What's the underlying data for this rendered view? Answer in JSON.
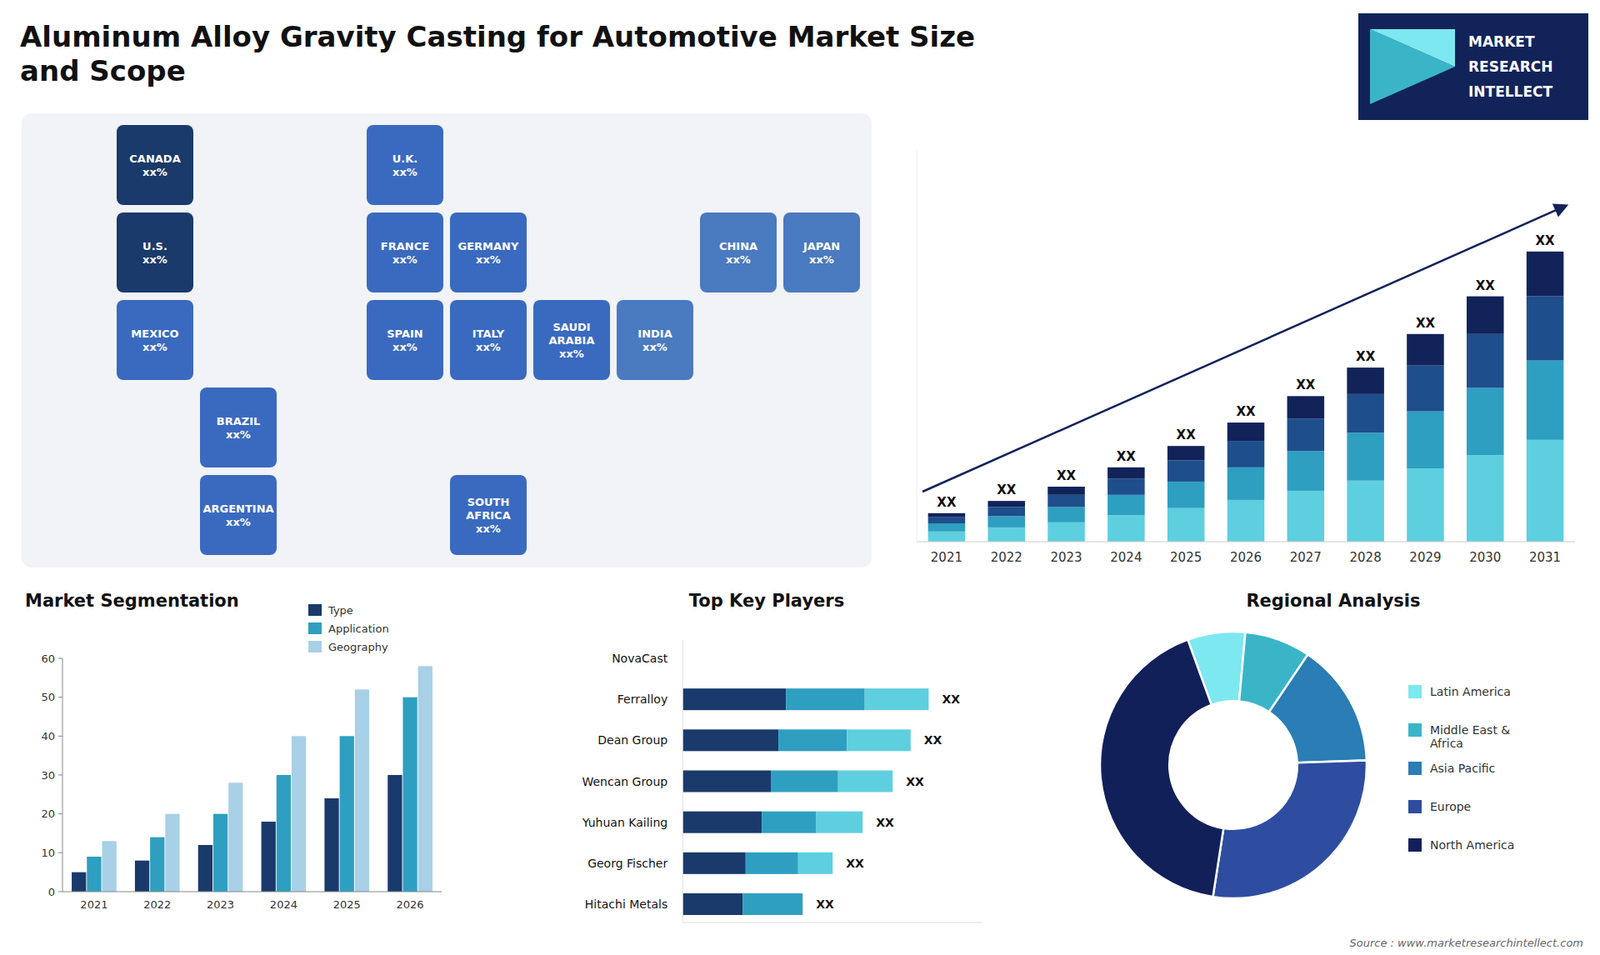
{
  "annotations": [
    "MARKET",
    "RESEARCH",
    "INTELLECT",
    "Source : www.marketresearchintellect.com"
  ],
  "chart_data": [
    {
      "type": "map",
      "categories": [
        "U.S.\nxx%",
        "CANADA\nxx%",
        "MEXICO\nxx%",
        "BRAZIL\nxx%",
        "ARGENTINA\nxx%",
        "U.K.\nxx%",
        "FRANCE\nxx%",
        "SPAIN\nxx%",
        "GERMANY\nxx%",
        "ITALY\nxx%",
        "SAUDI\nARABIA\nxx%",
        "SOUTH\nAFRICA\nxx%",
        "CHINA\nxx%",
        "INDIA\nxx%",
        "JAPAN\nxx%"
      ],
      "colors": [
        "#1a3a6b",
        "#1a3a6b",
        "#3a6abf",
        "#3a6abf",
        "#3a6abf",
        "#3a6abf",
        "#3a6abf",
        "#3a6abf",
        "#3a6abf",
        "#3a6abf",
        "#3a6abf",
        "#3a6abf",
        "#4a7abf",
        "#4a7abf",
        "#4a7abf"
      ]
    },
    {
      "type": "bar",
      "title": "Aluminum Alloy Gravity Casting for Automotive Market Size\nand Scope",
      "categories": [
        2021,
        2022,
        2023,
        2024,
        2025,
        2026,
        2027,
        2028,
        2029,
        2030,
        2031
      ],
      "stacked": true,
      "series": [
        {
          "color": "#5ecfdf",
          "values": [
            1.0,
            1.4,
            1.9,
            2.6,
            3.3,
            4.1,
            5.0,
            6.0,
            7.2,
            8.5,
            10.0
          ]
        },
        {
          "color": "#2e9fc0",
          "values": [
            0.8,
            1.1,
            1.5,
            2.0,
            2.6,
            3.2,
            3.9,
            4.7,
            5.6,
            6.6,
            7.8
          ]
        },
        {
          "color": "#1e4e8c",
          "values": [
            0.6,
            0.9,
            1.2,
            1.6,
            2.1,
            2.6,
            3.2,
            3.8,
            4.5,
            5.3,
            6.3
          ]
        },
        {
          "color": "#12235a",
          "values": [
            0.4,
            0.6,
            0.8,
            1.1,
            1.4,
            1.8,
            2.2,
            2.6,
            3.1,
            3.7,
            4.4
          ]
        }
      ],
      "annotations": [
        "XX",
        "XX",
        "XX",
        "XX",
        "XX",
        "XX",
        "XX",
        "XX",
        "XX",
        "XX",
        "XX"
      ],
      "ylim": [
        0,
        38.475
      ],
      "tick_labels": "x",
      "grid": false
    },
    {
      "type": "bar",
      "title": "Market Segmentation",
      "categories": [
        2021,
        2022,
        2023,
        2024,
        2025,
        2026
      ],
      "series": [
        {
          "name": "Type",
          "color": "#1a3a6b",
          "values": [
            5,
            8,
            12,
            18,
            24,
            30
          ]
        },
        {
          "name": "Application",
          "color": "#2e9fc0",
          "values": [
            9,
            14,
            20,
            30,
            40,
            50
          ]
        },
        {
          "name": "Geography",
          "color": "#a8d0e6",
          "values": [
            13,
            20,
            28,
            40,
            52,
            58
          ]
        }
      ],
      "ylim": [
        0,
        60
      ],
      "yticks": [
        0,
        10,
        20,
        30,
        40,
        50,
        60
      ],
      "legend": "upper right",
      "grid": false
    },
    {
      "type": "bar",
      "title": "Top Key Players",
      "orientation": "horizontal",
      "stacked": true,
      "categories": [
        "NovaCast",
        "Ferralloy",
        "Dean Group",
        "Wencan Group",
        "Yuhuan Kailing",
        "Georg Fischer",
        "Hitachi Metals"
      ],
      "series": [
        {
          "color": "#1a3a6b",
          "values": [
            0.0,
            0.3444,
            0.3192,
            0.294,
            0.264,
            0.21,
            0.2
          ]
        },
        {
          "color": "#2e9fc0",
          "values": [
            0.0,
            0.2624,
            0.228,
            0.224,
            0.18,
            0.175,
            0.2
          ]
        },
        {
          "color": "#5ecfdf",
          "values": [
            0.0,
            0.2132,
            0.2128,
            0.182,
            0.156,
            0.115,
            0.0
          ]
        }
      ],
      "annotations": [
        null,
        "XX",
        "XX",
        "XX",
        "XX",
        "XX",
        "XX"
      ],
      "xlim": [
        0,
        1
      ],
      "tick_labels": "y",
      "grid": false
    },
    {
      "type": "pie",
      "title": "Regional Analysis",
      "categories": [
        "Latin America",
        "Middle East &\nAfrica",
        "Asia Pacific",
        "Europe",
        "North America"
      ],
      "values": [
        0.07,
        0.08,
        0.15,
        0.28,
        0.42
      ],
      "colors": [
        "#7de8f0",
        "#3ab5c8",
        "#2a7db5",
        "#2e4da0",
        "#12205a"
      ],
      "legend": "right"
    }
  ]
}
